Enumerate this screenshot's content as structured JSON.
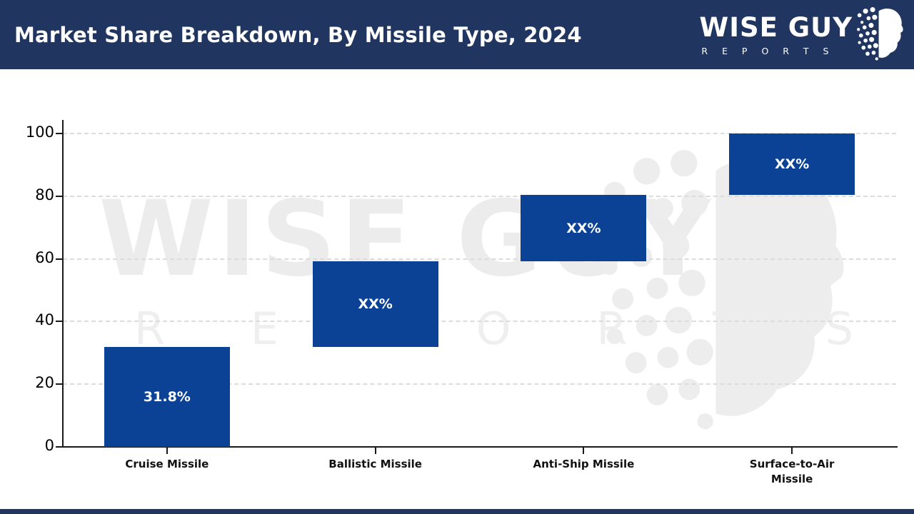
{
  "header": {
    "title": "Market Share Breakdown, By Missile Type, 2024",
    "background": "#20355f",
    "logo": {
      "line1": "WISE GUY",
      "line2": "R E P O R T S"
    }
  },
  "watermark": {
    "line1": "WISE GUY",
    "line2": "R E P O R T S"
  },
  "chart_data": {
    "type": "bar",
    "subtype": "waterfall-stacked-percentage",
    "title": "Market Share Breakdown, By Missile Type, 2024",
    "categories": [
      "Cruise Missile",
      "Ballistic Missile",
      "Anti-Ship Missile",
      "Surface-to-Air Missile"
    ],
    "segments": [
      {
        "category": "Cruise Missile",
        "start": 0,
        "end": 31.8,
        "label": "31.8%"
      },
      {
        "category": "Ballistic Missile",
        "start": 31.8,
        "end": 59.2,
        "label": "XX%"
      },
      {
        "category": "Anti-Ship Missile",
        "start": 59.2,
        "end": 80.4,
        "label": "XX%"
      },
      {
        "category": "Surface-to-Air Missile",
        "start": 80.4,
        "end": 100,
        "label": "XX%"
      }
    ],
    "ylim": [
      0,
      100
    ],
    "yticks": [
      0,
      20,
      40,
      60,
      80,
      100
    ],
    "xlabel": "",
    "ylabel": "",
    "grid": "dashed-horizontal",
    "legend": "none",
    "bar_color": "#0b4295",
    "bar_label_color": "#ffffff"
  },
  "footer": {
    "background": "#20355f"
  }
}
